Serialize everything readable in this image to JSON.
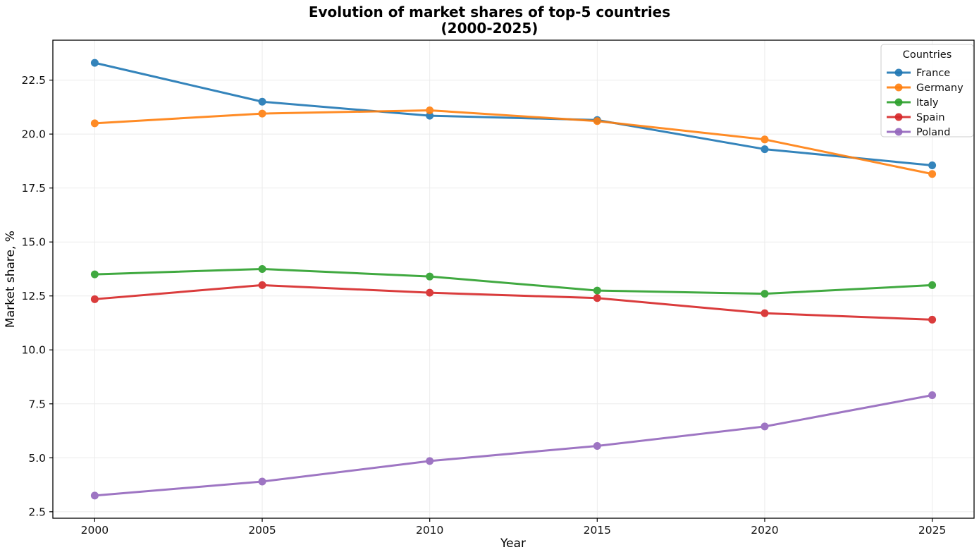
{
  "title": {
    "line1": "Evolution of market shares of top-5 countries",
    "line2": "(2000-2025)"
  },
  "axes": {
    "xlabel": "Year",
    "ylabel": "Market share, %",
    "x_ticks": [
      "2000",
      "2005",
      "2010",
      "2015",
      "2020",
      "2025"
    ],
    "y_ticks": [
      "2.5",
      "5.0",
      "7.5",
      "10.0",
      "12.5",
      "15.0",
      "17.5",
      "20.0",
      "22.5"
    ]
  },
  "legend": {
    "title": "Countries",
    "entries": [
      "France",
      "Germany",
      "Italy",
      "Spain",
      "Poland"
    ]
  },
  "colors": {
    "france": "#1f77b4",
    "germany": "#ff7f0e",
    "italy": "#2ca02c",
    "spain": "#d62728",
    "poland": "#9467bd",
    "grid": "#dcdcdc",
    "spine": "#000000",
    "legend_border": "#cccccc",
    "legend_bg": "rgba(255,255,255,0.85)"
  },
  "chart_data": {
    "type": "line",
    "title": "Evolution of market shares of top-5 countries (2000-2025)",
    "xlabel": "Year",
    "ylabel": "Market share, %",
    "x": [
      2000,
      2005,
      2010,
      2015,
      2020,
      2025
    ],
    "series": [
      {
        "name": "France",
        "color": "#1f77b4",
        "values": [
          23.3,
          21.5,
          20.85,
          20.65,
          19.3,
          18.55
        ]
      },
      {
        "name": "Germany",
        "color": "#ff7f0e",
        "values": [
          20.5,
          20.95,
          21.1,
          20.6,
          19.75,
          18.15
        ]
      },
      {
        "name": "Italy",
        "color": "#2ca02c",
        "values": [
          13.5,
          13.75,
          13.4,
          12.75,
          12.6,
          13.0
        ]
      },
      {
        "name": "Spain",
        "color": "#d62728",
        "values": [
          12.35,
          13.0,
          12.65,
          12.4,
          11.7,
          11.4
        ]
      },
      {
        "name": "Poland",
        "color": "#9467bd",
        "values": [
          3.25,
          3.9,
          4.85,
          5.55,
          6.45,
          7.9
        ]
      }
    ],
    "xlim": [
      1998.75,
      2026.25
    ],
    "ylim": [
      2.2,
      24.35
    ],
    "y_tick_values": [
      2.5,
      5.0,
      7.5,
      10.0,
      12.5,
      15.0,
      17.5,
      20.0,
      22.5
    ],
    "grid": true,
    "legend_position": "upper right",
    "legend_title": "Countries"
  }
}
